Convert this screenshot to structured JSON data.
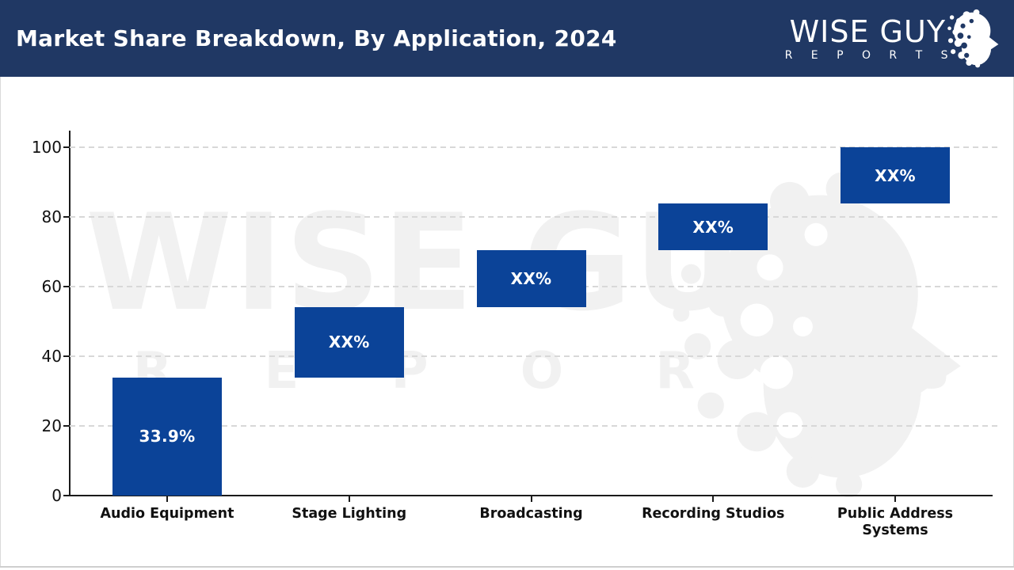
{
  "header": {
    "title": "Market Share Breakdown, By Application, 2024",
    "bg_color": "#203864",
    "logo": {
      "line1": "WISE GUY",
      "line2": "R E P O R T S",
      "head_icon": "dotted-head-profile"
    }
  },
  "watermark": {
    "line1": "WISE GUY",
    "line2": "R E P O R T S",
    "head_icon": "dotted-head-profile",
    "color": "#f1f1f1"
  },
  "chart_data": {
    "type": "bar",
    "subtype": "waterfall",
    "title": "Market Share Breakdown, By Application, 2024",
    "categories": [
      "Audio Equipment",
      "Stage Lighting",
      "Broadcasting",
      "Recording Studios",
      "Public Address\nSystems"
    ],
    "series": [
      {
        "name": "Market Share",
        "segments": [
          {
            "category": "Audio Equipment",
            "start": 0,
            "end": 33.9,
            "label": "33.9%"
          },
          {
            "category": "Stage Lighting",
            "start": 33.9,
            "end": 54.2,
            "label": "XX%"
          },
          {
            "category": "Broadcasting",
            "start": 54.2,
            "end": 70.5,
            "label": "XX%"
          },
          {
            "category": "Recording Studios",
            "start": 70.5,
            "end": 83.8,
            "label": "XX%"
          },
          {
            "category": "Public Address Systems",
            "start": 83.8,
            "end": 100,
            "label": "XX%"
          }
        ]
      }
    ],
    "xlabel": "",
    "ylabel": "",
    "ylim": [
      0,
      105
    ],
    "yticks": [
      0,
      20,
      40,
      60,
      80,
      100
    ],
    "grid": "horizontal-dashed",
    "legend": "none",
    "bar_color": "#0b4398",
    "bar_label_color": "#ffffff"
  }
}
